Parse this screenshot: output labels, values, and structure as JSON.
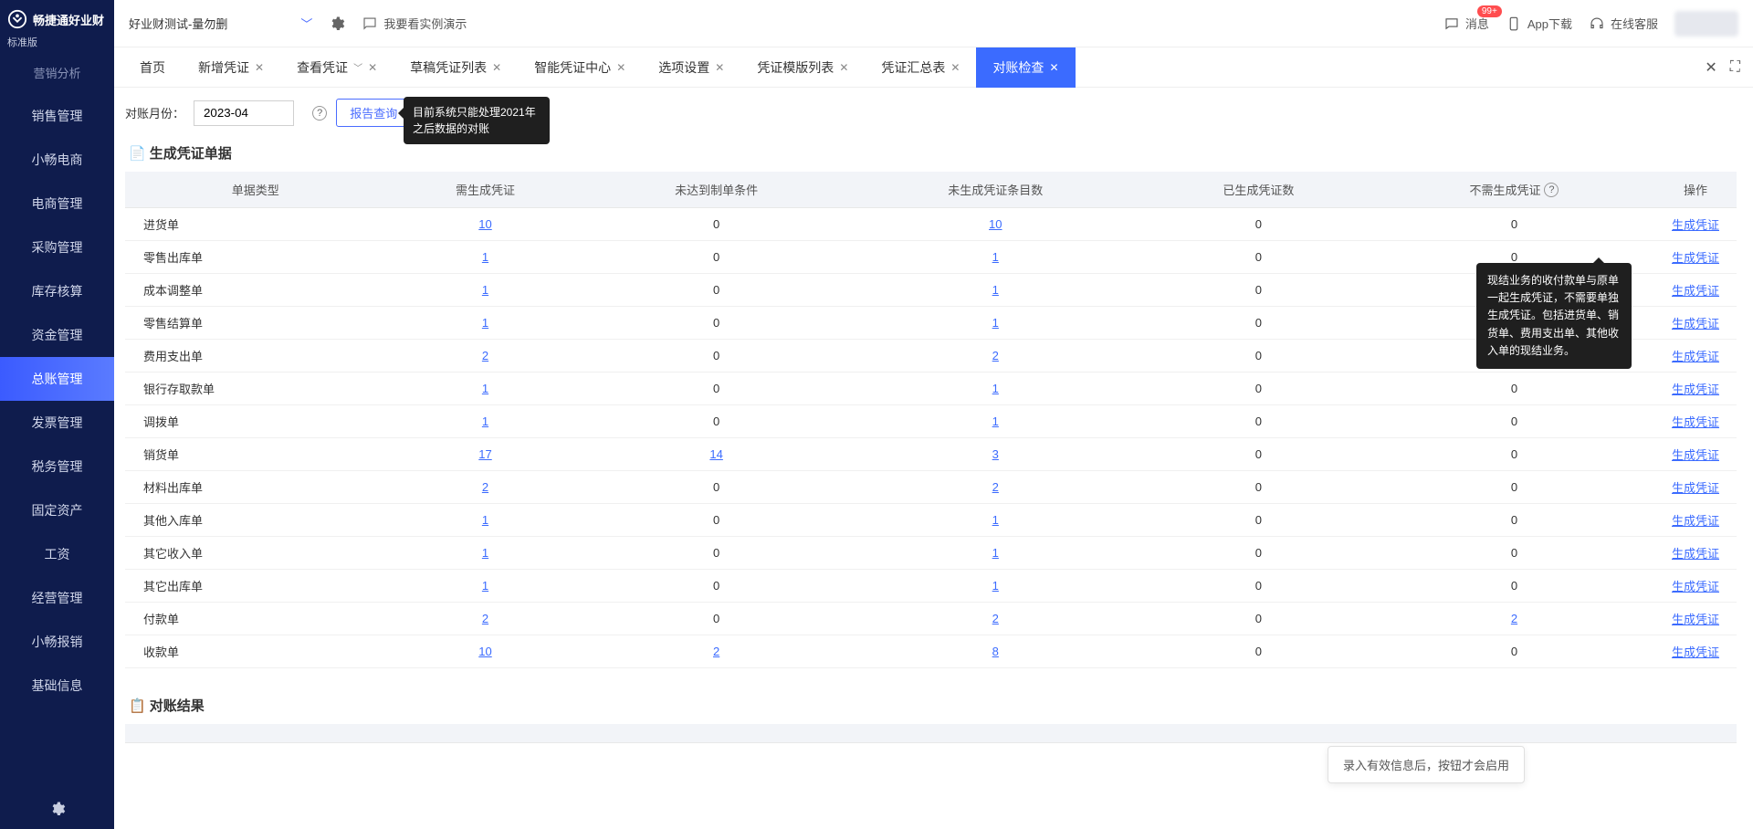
{
  "brand": {
    "name": "畅捷通好业财",
    "edition": "标准版"
  },
  "topbar": {
    "org": "好业财测试-量勿删",
    "demo": "我要看实例演示",
    "msg": "消息",
    "msg_badge": "99+",
    "app": "App下载",
    "service": "在线客服"
  },
  "sidebar": {
    "topcut": "营销分析",
    "items": [
      "销售管理",
      "小畅电商",
      "电商管理",
      "采购管理",
      "库存核算",
      "资金管理",
      "总账管理",
      "发票管理",
      "税务管理",
      "固定资产",
      "工资",
      "经营管理",
      "小畅报销",
      "基础信息"
    ],
    "active_index": 6
  },
  "tabs": {
    "items": [
      {
        "label": "首页",
        "closable": false
      },
      {
        "label": "新增凭证",
        "closable": true
      },
      {
        "label": "查看凭证",
        "closable": true,
        "dropdown": true
      },
      {
        "label": "草稿凭证列表",
        "closable": true
      },
      {
        "label": "智能凭证中心",
        "closable": true
      },
      {
        "label": "选项设置",
        "closable": true
      },
      {
        "label": "凭证模版列表",
        "closable": true
      },
      {
        "label": "凭证汇总表",
        "closable": true
      },
      {
        "label": "对账检查",
        "closable": true,
        "active": true
      }
    ]
  },
  "filter": {
    "label": "对账月份：",
    "value": "2023-04",
    "query_btn": "报告查询",
    "tip": "目前系统只能处理2021年之后数据的对账"
  },
  "section1": {
    "title": "生成凭证单据",
    "columns": [
      "单据类型",
      "需生成凭证",
      "未达到制单条件",
      "未生成凭证条目数",
      "已生成凭证数",
      "不需生成凭证",
      "操作"
    ],
    "help_col_tip": "现结业务的收付款单与原单一起生成凭证，不需要单独生成凭证。包括进货单、销货单、费用支出单、其他收入单的现结业务。",
    "action_label": "生成凭证",
    "rows": [
      {
        "type": "进货单",
        "need": "10",
        "unreach": "0",
        "ungen": "10",
        "gen": "0",
        "noneed": "0"
      },
      {
        "type": "零售出库单",
        "need": "1",
        "unreach": "0",
        "ungen": "1",
        "gen": "0",
        "noneed": "0"
      },
      {
        "type": "成本调整单",
        "need": "1",
        "unreach": "0",
        "ungen": "1",
        "gen": "0",
        "noneed": "0"
      },
      {
        "type": "零售结算单",
        "need": "1",
        "unreach": "0",
        "ungen": "1",
        "gen": "0",
        "noneed": "0"
      },
      {
        "type": "费用支出单",
        "need": "2",
        "unreach": "0",
        "ungen": "2",
        "gen": "0",
        "noneed": "0"
      },
      {
        "type": "银行存取款单",
        "need": "1",
        "unreach": "0",
        "ungen": "1",
        "gen": "0",
        "noneed": "0"
      },
      {
        "type": "调拨单",
        "need": "1",
        "unreach": "0",
        "ungen": "1",
        "gen": "0",
        "noneed": "0"
      },
      {
        "type": "销货单",
        "need": "17",
        "unreach": "14",
        "ungen": "3",
        "gen": "0",
        "noneed": "0"
      },
      {
        "type": "材料出库单",
        "need": "2",
        "unreach": "0",
        "ungen": "2",
        "gen": "0",
        "noneed": "0"
      },
      {
        "type": "其他入库单",
        "need": "1",
        "unreach": "0",
        "ungen": "1",
        "gen": "0",
        "noneed": "0"
      },
      {
        "type": "其它收入单",
        "need": "1",
        "unreach": "0",
        "ungen": "1",
        "gen": "0",
        "noneed": "0"
      },
      {
        "type": "其它出库单",
        "need": "1",
        "unreach": "0",
        "ungen": "1",
        "gen": "0",
        "noneed": "0"
      },
      {
        "type": "付款单",
        "need": "2",
        "unreach": "0",
        "ungen": "2",
        "gen": "0",
        "noneed": "2",
        "noneed_link": true
      },
      {
        "type": "收款单",
        "need": "10",
        "unreach": "2",
        "ungen": "8",
        "gen": "0",
        "noneed": "0"
      }
    ]
  },
  "section2": {
    "title": "对账结果"
  },
  "float_hint": "录入有效信息后，按钮才会启用",
  "colors": {
    "sidebar_bg": "#0f1c4d",
    "primary": "#3b6bff",
    "link": "#3b6bff",
    "badge": "#ff4d4f",
    "th_bg": "#f2f4f8"
  }
}
